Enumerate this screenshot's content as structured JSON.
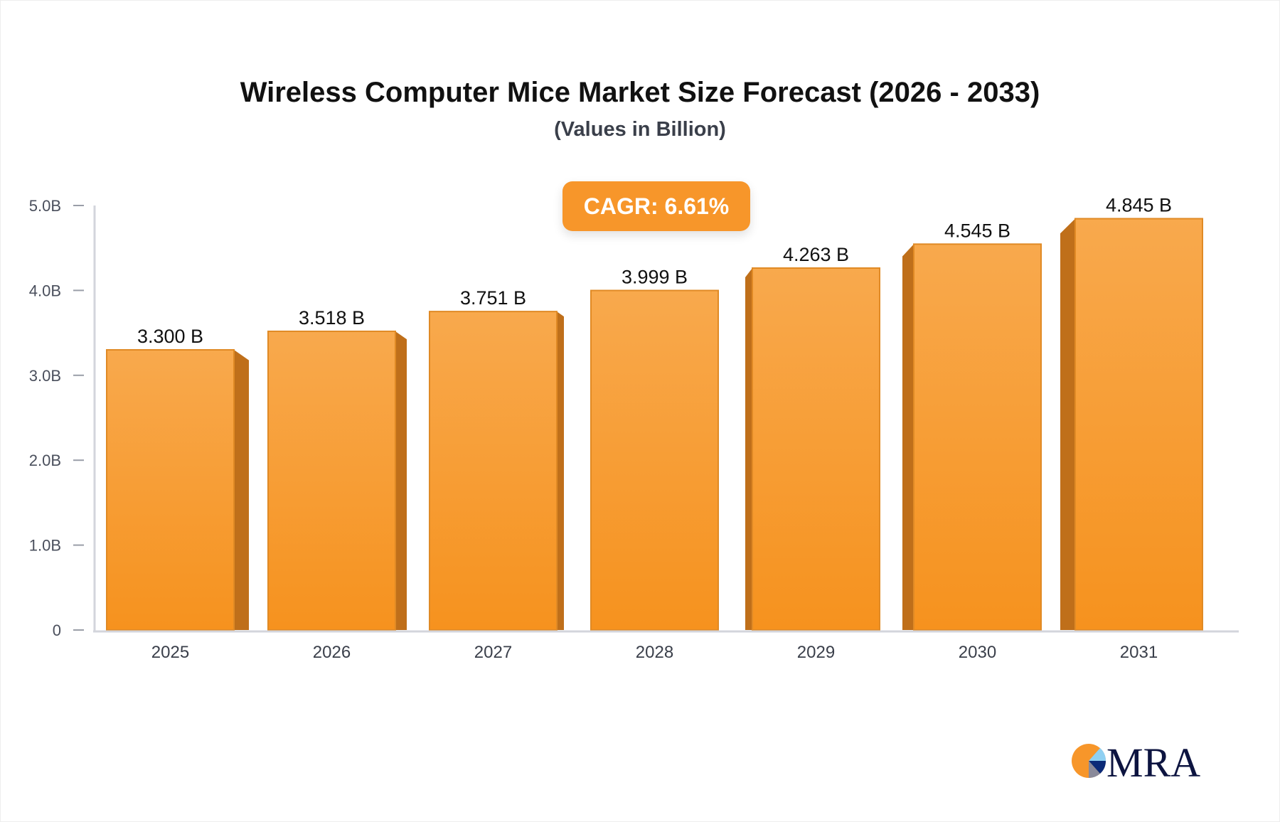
{
  "chart_data": {
    "type": "bar",
    "title": "Wireless Computer Mice Market Size Forecast (2026 - 2033)",
    "subtitle": "(Values in Billion)",
    "categories": [
      "2025",
      "2026",
      "2027",
      "2028",
      "2029",
      "2030",
      "2031"
    ],
    "values": [
      3.3,
      3.518,
      3.751,
      3.999,
      4.263,
      4.545,
      4.845
    ],
    "data_labels": [
      "3.300 B",
      "3.518 B",
      "3.751 B",
      "3.999 B",
      "4.263 B",
      "4.545 B",
      "4.845 B"
    ],
    "y_ticks": [
      0,
      1,
      2,
      3,
      4,
      5
    ],
    "y_tick_labels": [
      "0",
      "1.0B",
      "2.0B",
      "3.0B",
      "4.0B",
      "5.0B"
    ],
    "ylim": [
      0,
      5
    ],
    "xlabel": "",
    "ylabel": "",
    "grid": false,
    "annotation": "CAGR: 6.61%",
    "colors": {
      "bar_top": "#f8a94d",
      "bar_bottom": "#f6921e",
      "bar_side": "#bf6f1a",
      "bar_edge": "#e08a25",
      "badge": "#f7962a"
    }
  },
  "logo": {
    "text": "MRA"
  }
}
